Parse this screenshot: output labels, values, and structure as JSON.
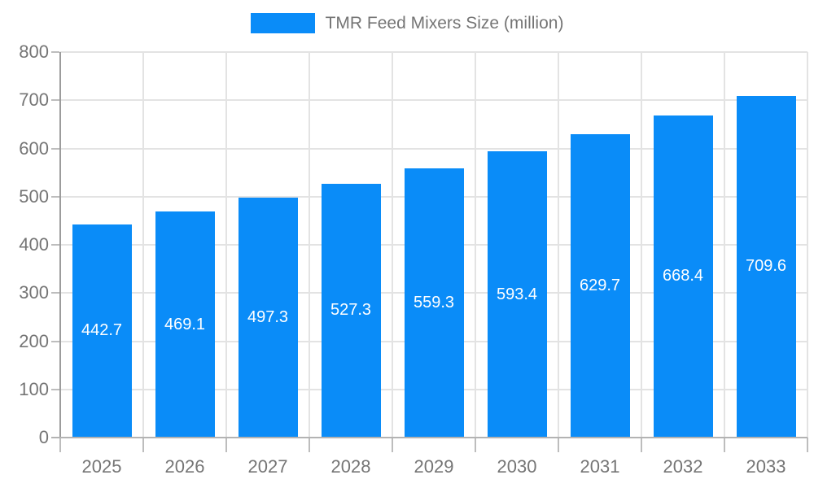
{
  "legend": {
    "label": "TMR Feed Mixers Size (million)"
  },
  "colors": {
    "bar": "#0a8cf8",
    "axis_text": "#757575",
    "grid": "#e3e3e3",
    "tick": "#bdbdbd",
    "y_axis_line": "#9c9c9c",
    "baseline": "#b3b3b3",
    "value_label": "#ffffff",
    "background": "#ffffff"
  },
  "chart_data": {
    "type": "bar",
    "categories": [
      "2025",
      "2026",
      "2027",
      "2028",
      "2029",
      "2030",
      "2031",
      "2032",
      "2033"
    ],
    "values": [
      442.7,
      469.1,
      497.3,
      527.3,
      559.3,
      593.4,
      629.7,
      668.4,
      709.6
    ],
    "series_name": "TMR Feed Mixers Size (million)",
    "title": "",
    "xlabel": "",
    "ylabel": "",
    "ylim": [
      0,
      800
    ],
    "yticks": [
      0,
      100,
      200,
      300,
      400,
      500,
      600,
      700,
      800
    ],
    "grid": true,
    "legend_position": "top-center",
    "value_labels": "inside-center-white"
  }
}
